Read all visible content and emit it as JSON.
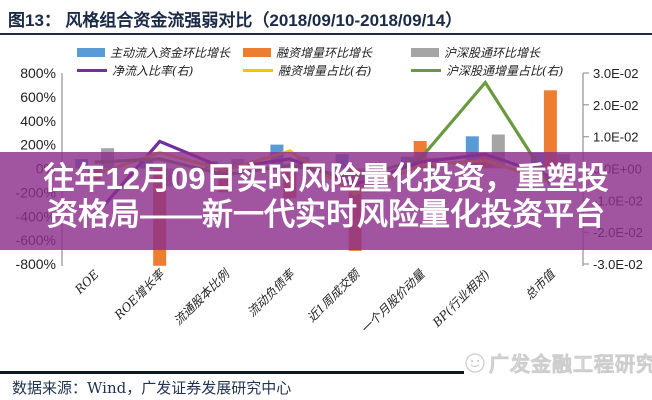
{
  "header": {
    "figure_label": "图13：",
    "title": "风格组合资金流强弱对比（2018/09/10-2018/09/14）"
  },
  "banner": {
    "line1": "往年12月09日实时风险量化投资，重塑投",
    "line2": "资格局——新一代实时风险量化投资平台"
  },
  "footer": {
    "source": "数据来源：Wind，广发证券发展研究中心"
  },
  "watermark": {
    "text": "广发金融工程研究"
  },
  "chart_data": {
    "type": "bar",
    "subtype": "grouped bars with overlaid lines (dual axis)",
    "categories": [
      "ROE",
      "ROE增长率",
      "流通股本比例",
      "流动负债率",
      "近1周成交额",
      "一个月股价动量",
      "BP(行业相对)",
      "总市值"
    ],
    "bar_series": [
      {
        "name": "主动流入资金环比增长",
        "color": "#5B9BD5",
        "axis": "left",
        "values_pct": [
          80,
          90,
          60,
          200,
          120,
          100,
          270,
          130
        ]
      },
      {
        "name": "融资增量环比增长",
        "color": "#ED7D31",
        "axis": "left",
        "values_pct": [
          -100,
          -815,
          -200,
          -250,
          -690,
          230,
          120,
          655
        ]
      },
      {
        "name": "沪深股通环比增长",
        "color": "#A5A5A5",
        "axis": "left",
        "values_pct": [
          170,
          -150,
          80,
          100,
          -200,
          90,
          285,
          120
        ]
      }
    ],
    "line_series": [
      {
        "name": "净流入比率(右)",
        "color": "#7030A0",
        "axis": "right",
        "values_e2": [
          -1.5,
          0.85,
          0.0,
          0.3,
          -0.5,
          0.2,
          0.45,
          -0.25
        ]
      },
      {
        "name": "融资增量占比(右)",
        "color": "#FFC000",
        "axis": "right",
        "values_e2": [
          -0.2,
          0.5,
          -0.05,
          0.55,
          -0.8,
          0.1,
          0.25,
          -0.4
        ]
      },
      {
        "name": "沪深股通增量占比(右)",
        "color": "#6A9A3F",
        "axis": "right",
        "values_e2": [
          0.2,
          0.3,
          -0.2,
          0.1,
          -0.3,
          0.3,
          2.7,
          -0.5
        ]
      }
    ],
    "left_axis": {
      "ticks": [
        "800%",
        "600%",
        "400%",
        "200%",
        "0%",
        "-200%",
        "-400%",
        "-600%",
        "-800%"
      ],
      "max_pct": 800,
      "min_pct": -800
    },
    "right_axis": {
      "ticks": [
        "3.0E-02",
        "2.0E-02",
        "1.0E-02",
        "0.0E+00",
        "-1.0E-02",
        "-2.0E-02",
        "-3.0E-02"
      ],
      "max": 0.03,
      "min": -0.03
    },
    "grid": "off",
    "legend_position": "top"
  }
}
